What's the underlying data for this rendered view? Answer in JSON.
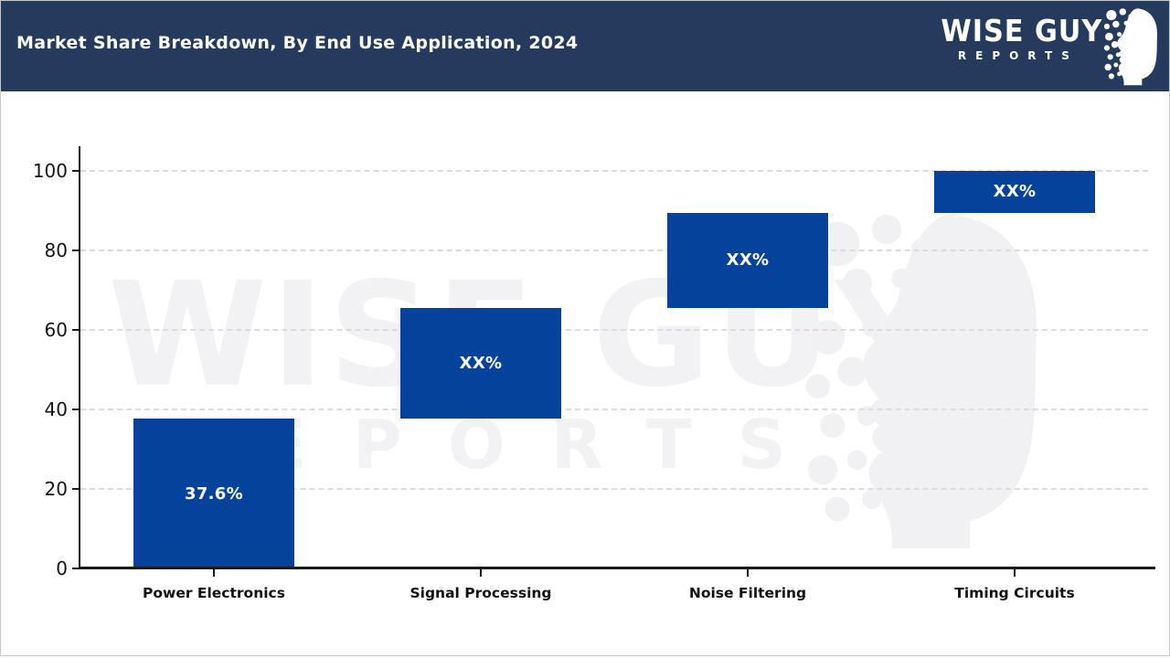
{
  "header": {
    "title": "Market Share Breakdown, By End Use Application, 2024",
    "logo": {
      "line1": "WISE GUY",
      "line2": "REPORTS"
    }
  },
  "watermark": {
    "line1": "WISE GUY",
    "line2": "REPORTS"
  },
  "chart_data": {
    "type": "bar",
    "subtype": "waterfall",
    "title": "Market Share Breakdown, By End Use Application, 2024",
    "categories": [
      "Power Electronics",
      "Signal Processing",
      "Noise Filtering",
      "Timing Circuits"
    ],
    "segments": [
      {
        "category": "Power Electronics",
        "start": 0,
        "end": 37.6,
        "label": "37.6%"
      },
      {
        "category": "Signal Processing",
        "start": 37.6,
        "end": 65.5,
        "label": "XX%"
      },
      {
        "category": "Noise Filtering",
        "start": 65.5,
        "end": 89.5,
        "label": "XX%"
      },
      {
        "category": "Timing Circuits",
        "start": 89.5,
        "end": 100,
        "label": "XX%"
      }
    ],
    "displayed_labels": [
      "37.6%",
      "XX%",
      "XX%",
      "XX%"
    ],
    "yticks": [
      0,
      20,
      40,
      60,
      80,
      100
    ],
    "ylim": [
      0,
      106
    ],
    "xlabel": "",
    "ylabel": "",
    "legend": null,
    "grid": "horizontal-dashed",
    "bar_color": "#05429c",
    "bar_label_color": "#ffffff"
  },
  "colors": {
    "header_bg": "#253b5e",
    "bar": "#05429c",
    "grid": "#dcdcdc",
    "axis": "#1a1a1a",
    "watermark": "#f2f2f4",
    "frame_border": "#c9c9c9",
    "chart_bg": "#ffffff"
  }
}
